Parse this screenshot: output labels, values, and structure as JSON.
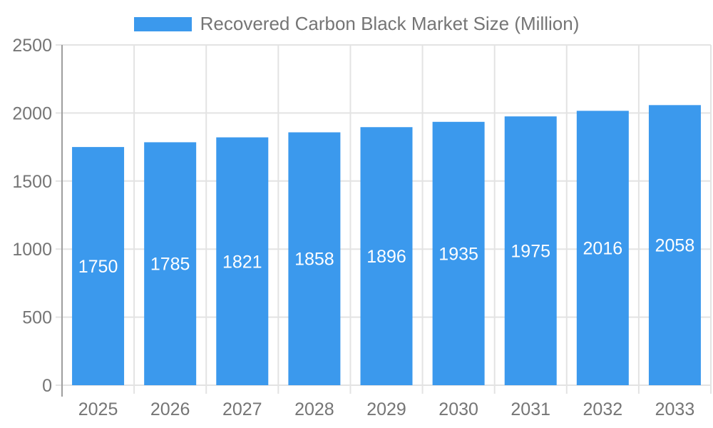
{
  "chart_data": {
    "type": "bar",
    "title": "",
    "categories": [
      "2025",
      "2026",
      "2027",
      "2028",
      "2029",
      "2030",
      "2031",
      "2032",
      "2033"
    ],
    "series": [
      {
        "name": "Recovered Carbon Black Market Size (Million)",
        "values": [
          1750,
          1785,
          1821,
          1858,
          1896,
          1935,
          1975,
          2016,
          2058
        ]
      }
    ],
    "xlabel": "",
    "ylabel": "",
    "ylim": [
      0,
      2500
    ],
    "yticks": [
      0,
      500,
      1000,
      1500,
      2000,
      2500
    ],
    "grid": true,
    "bar_labels": true,
    "legend_position": "top-center",
    "colors": {
      "bar": "#3b99ed",
      "grid": "#e3e3e3",
      "axis": "#9e9e9e",
      "tick_text": "#757575",
      "bar_label_text": "#ffffff",
      "background": "#ffffff"
    }
  }
}
